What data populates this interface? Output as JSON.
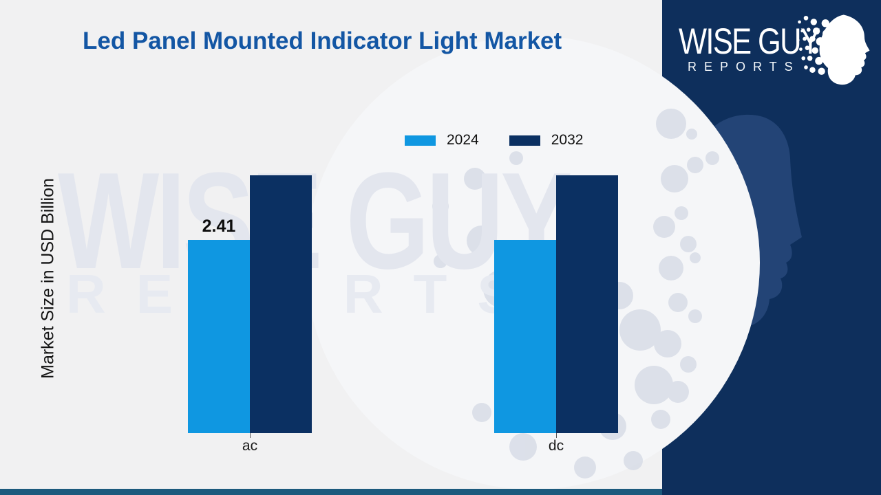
{
  "title": "Led Panel Mounted Indicator Light Market",
  "y_axis_label": "Market Size in USD Billion",
  "brand": {
    "name": "WISE GUY",
    "tagline": "REPORTS"
  },
  "watermark": {
    "line1": "WISE GUY",
    "line2": "REPORTS"
  },
  "colors": {
    "title_blue": "#1356a4",
    "bar_2024_blue": "#0f97e1",
    "bar_2032_navy": "#0b3062",
    "panel_navy": "#0e2f5c",
    "bottom_strip_teal": "#1c5a7d",
    "background": "#f1f1f2",
    "watermark_gray": "#e3e6ee"
  },
  "chart_data": {
    "type": "bar",
    "title": "Led Panel Mounted Indicator Light Market",
    "categories": [
      "ac",
      "dc"
    ],
    "series": [
      {
        "name": "2024",
        "color": "#0f97e1",
        "values": [
          2.41,
          2.41
        ],
        "data_labels": [
          "2.41",
          ""
        ]
      },
      {
        "name": "2032",
        "color": "#0b3062",
        "values": [
          3.22,
          3.22
        ],
        "data_labels": [
          "",
          ""
        ]
      }
    ],
    "xlabel": "",
    "ylabel": "Market Size in USD Billion",
    "ylim": [
      0,
      3.4
    ],
    "grid": false,
    "legend_position": "top-center",
    "data_label_note": "only ac/2024 bar shows printed value 2.41; 2032 bar heights estimated ~3.22"
  }
}
